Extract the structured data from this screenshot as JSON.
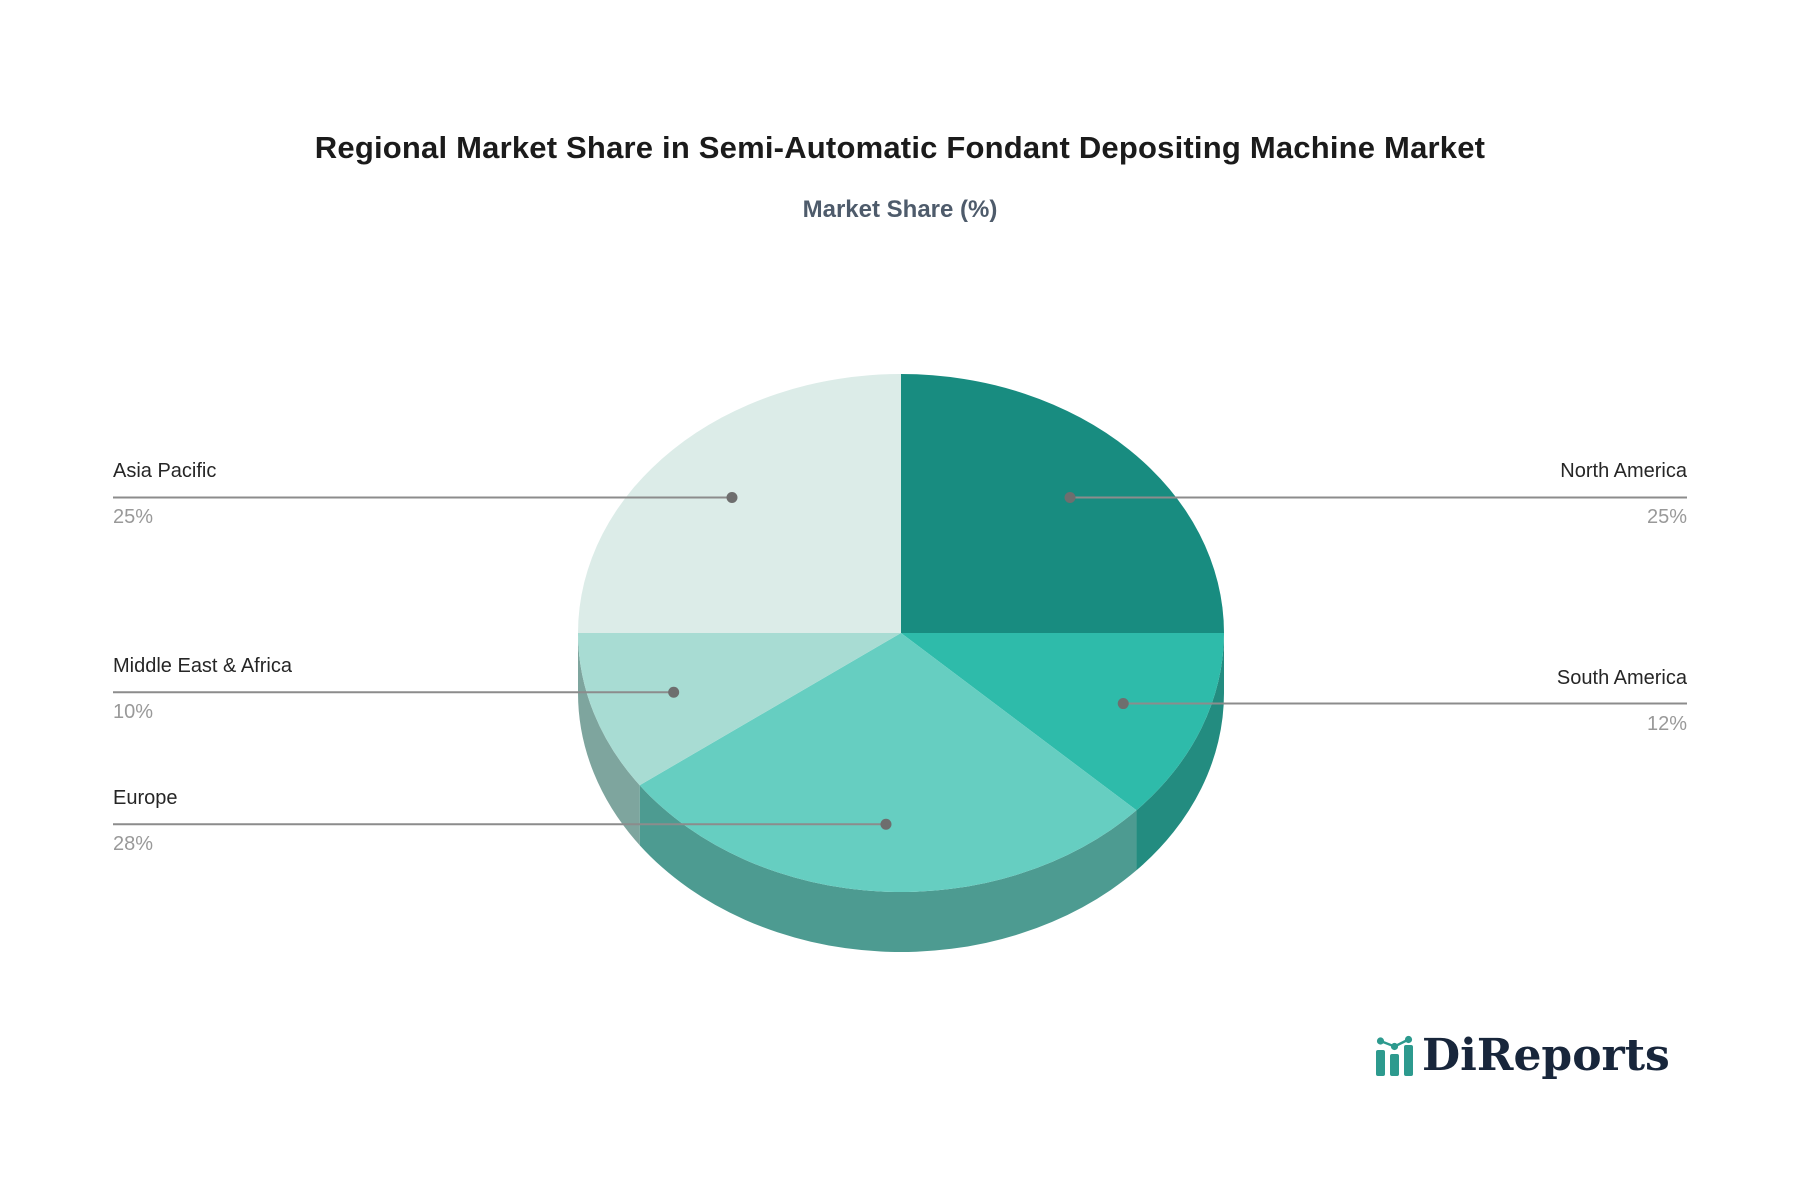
{
  "title": "Regional Market Share in Semi-Automatic Fondant Depositing Machine Market",
  "subtitle": "Market Share (%)",
  "chart_data": {
    "type": "pie",
    "style": "3d",
    "title": "Regional Market Share in Semi-Automatic Fondant Depositing Machine Market",
    "subtitle": "Market Share (%)",
    "unit": "%",
    "start_angle_deg": 0,
    "direction": "clockwise",
    "categories": [
      "North America",
      "South America",
      "Europe",
      "Middle East & Africa",
      "Asia Pacific"
    ],
    "values": [
      25,
      12,
      28,
      10,
      25
    ],
    "value_labels": [
      "25%",
      "12%",
      "28%",
      "10%",
      "25%"
    ],
    "slice_colors": [
      "#188c80",
      "#2ebbaa",
      "#66cec1",
      "#a8dcd3",
      "#dcece8"
    ],
    "legend_position": "none",
    "grid": false
  },
  "branding": {
    "logo_text": "DiReports",
    "logo_icon": "bar-line-chart-icon",
    "logo_text_color": "#18263b",
    "logo_icon_color": "#2d9a8e"
  },
  "colors": {
    "background": "#ffffff",
    "title_text": "#1b1b1b",
    "subtitle_text": "#4e5b6b",
    "label_text": "#262626",
    "percent_text": "#999999",
    "leader_line": "#8c8c8c",
    "leader_dot": "#6e6e6e"
  }
}
